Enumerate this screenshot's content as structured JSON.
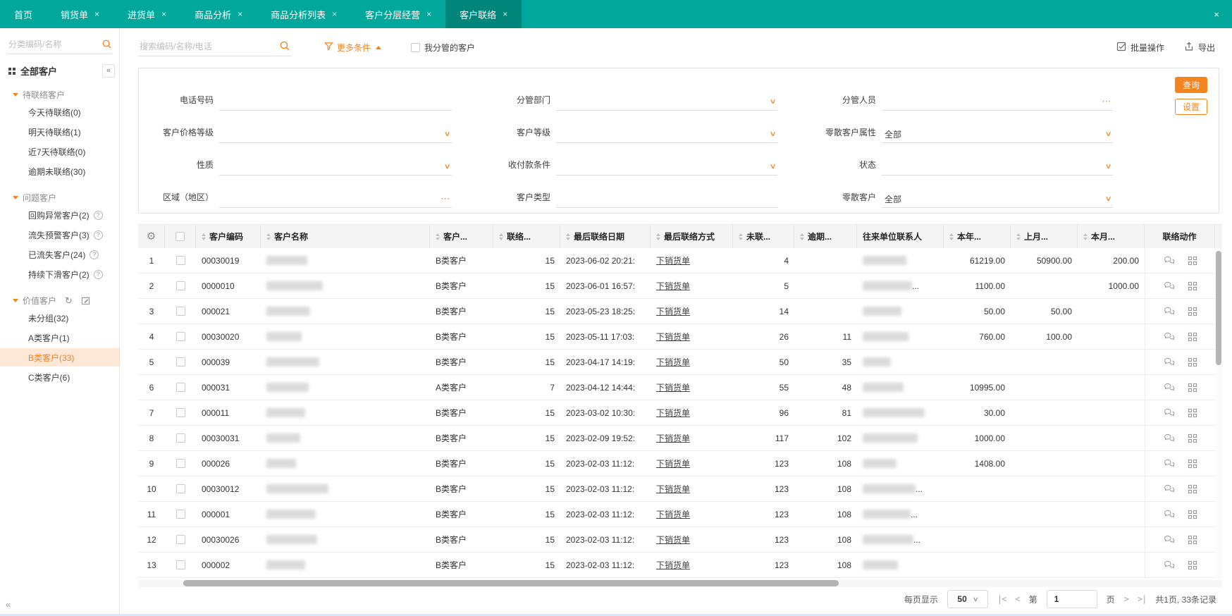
{
  "topbar": {
    "tabs": [
      {
        "label": "首页",
        "closable": false,
        "active": false
      },
      {
        "label": "销货单",
        "closable": true,
        "active": false
      },
      {
        "label": "进货单",
        "closable": true,
        "active": false
      },
      {
        "label": "商品分析",
        "closable": true,
        "active": false
      },
      {
        "label": "商品分析列表",
        "closable": true,
        "active": false
      },
      {
        "label": "客户分层经营",
        "closable": true,
        "active": false
      },
      {
        "label": "客户联络",
        "closable": true,
        "active": true
      }
    ],
    "close_all": "×"
  },
  "sidebar": {
    "search_placeholder": "分类编码/名称",
    "all_customers": "全部客户",
    "collapse_icon": "«",
    "groups": [
      {
        "label": "待联络客户",
        "items": [
          {
            "label": "今天待联络(0)"
          },
          {
            "label": "明天待联络(1)"
          },
          {
            "label": "近7天待联络(0)"
          },
          {
            "label": "逾期未联络(30)"
          }
        ]
      },
      {
        "label": "问题客户",
        "items": [
          {
            "label": "回购异常客户(2)",
            "help": true
          },
          {
            "label": "流失预警客户(3)",
            "help": true
          },
          {
            "label": "已流失客户(24)",
            "help": true
          },
          {
            "label": "持续下滑客户(2)",
            "help": true
          }
        ]
      },
      {
        "label": "价值客户",
        "has_refresh": true,
        "has_edit": true,
        "items": [
          {
            "label": "未分组(32)"
          },
          {
            "label": "A类客户(1)"
          },
          {
            "label": "B类客户(33)",
            "selected": true
          },
          {
            "label": "C类客户(6)"
          }
        ]
      }
    ]
  },
  "toolbar": {
    "search_placeholder": "搜索编码/名称/电话",
    "more_filters": "更多条件",
    "my_customers": "我分管的客户",
    "batch_ops": "批量操作",
    "export": "导出"
  },
  "filter_panel": {
    "fields": [
      {
        "label": "电话号码",
        "value": "",
        "type": "input"
      },
      {
        "label": "分管部门",
        "value": "",
        "type": "select"
      },
      {
        "label": "分管人员",
        "value": "",
        "type": "ellipsis"
      },
      {
        "label": "客户价格等级",
        "value": "",
        "type": "select"
      },
      {
        "label": "客户等级",
        "value": "",
        "type": "select"
      },
      {
        "label": "零散客户属性",
        "value": "全部",
        "type": "select"
      },
      {
        "label": "性质",
        "value": "",
        "type": "select"
      },
      {
        "label": "收付款条件",
        "value": "",
        "type": "select"
      },
      {
        "label": "状态",
        "value": "",
        "type": "select"
      },
      {
        "label": "区域（地区）",
        "value": "",
        "type": "ellipsis"
      },
      {
        "label": "客户类型",
        "value": "",
        "type": "input"
      },
      {
        "label": "零散客户",
        "value": "全部",
        "type": "select"
      }
    ],
    "query_button": "查询",
    "settings_button": "设置"
  },
  "table": {
    "columns": [
      {
        "label": "客户编码",
        "sortable": true
      },
      {
        "label": "客户名称",
        "sortable": true
      },
      {
        "label": "客户...",
        "sortable": true
      },
      {
        "label": "联络...",
        "sortable": true
      },
      {
        "label": "最后联络日期",
        "sortable": true
      },
      {
        "label": "最后联络方式",
        "sortable": true
      },
      {
        "label": "未联...",
        "sortable": true
      },
      {
        "label": "逾期...",
        "sortable": true
      },
      {
        "label": "往来单位联系人",
        "sortable": false
      },
      {
        "label": "本年...",
        "sortable": true
      },
      {
        "label": "上月...",
        "sortable": true
      },
      {
        "label": "本月...",
        "sortable": true
      },
      {
        "label": "联络动作",
        "sortable": false
      }
    ],
    "rows": [
      {
        "num": "1",
        "code": "00030019",
        "name_w": 58,
        "grade": "B类客户",
        "cnt": "15",
        "date": "2023-06-02 20:21:",
        "way": "下销货单",
        "unl": "4",
        "ovd": "",
        "contact_w": 62,
        "contact_suffix": "",
        "year": "61219.00",
        "lm": "50900.00",
        "tm": "200.00"
      },
      {
        "num": "2",
        "code": "0000010",
        "name_w": 80,
        "grade": "B类客户",
        "cnt": "15",
        "date": "2023-06-01 16:57:",
        "way": "下销货单",
        "unl": "5",
        "ovd": "",
        "contact_w": 70,
        "contact_suffix": "...",
        "year": "1100.00",
        "lm": "",
        "tm": "1000.00"
      },
      {
        "num": "3",
        "code": "000021",
        "name_w": 62,
        "grade": "B类客户",
        "cnt": "15",
        "date": "2023-05-23 18:25:",
        "way": "下销货单",
        "unl": "14",
        "ovd": "",
        "contact_w": 55,
        "contact_suffix": "",
        "year": "50.00",
        "lm": "50.00",
        "tm": ""
      },
      {
        "num": "4",
        "code": "00030020",
        "name_w": 50,
        "grade": "B类客户",
        "cnt": "15",
        "date": "2023-05-11 17:03:",
        "way": "下销货单",
        "unl": "26",
        "ovd": "11",
        "contact_w": 65,
        "contact_suffix": "",
        "year": "760.00",
        "lm": "100.00",
        "tm": ""
      },
      {
        "num": "5",
        "code": "000039",
        "name_w": 75,
        "grade": "B类客户",
        "cnt": "15",
        "date": "2023-04-17 14:19:",
        "way": "下销货单",
        "unl": "50",
        "ovd": "35",
        "contact_w": 40,
        "contact_suffix": "",
        "year": "",
        "lm": "",
        "tm": ""
      },
      {
        "num": "6",
        "code": "000031",
        "name_w": 60,
        "grade": "A类客户",
        "cnt": "7",
        "date": "2023-04-12 14:44:",
        "way": "下销货单",
        "unl": "55",
        "ovd": "48",
        "contact_w": 58,
        "contact_suffix": "",
        "year": "10995.00",
        "lm": "",
        "tm": ""
      },
      {
        "num": "7",
        "code": "000011",
        "name_w": 55,
        "grade": "B类客户",
        "cnt": "15",
        "date": "2023-03-02 10:30:",
        "way": "下销货单",
        "unl": "96",
        "ovd": "81",
        "contact_w": 88,
        "contact_suffix": "",
        "year": "30.00",
        "lm": "",
        "tm": ""
      },
      {
        "num": "8",
        "code": "00030031",
        "name_w": 48,
        "grade": "B类客户",
        "cnt": "15",
        "date": "2023-02-09 19:52:",
        "way": "下销货单",
        "unl": "117",
        "ovd": "102",
        "contact_w": 78,
        "contact_suffix": "",
        "year": "1000.00",
        "lm": "",
        "tm": ""
      },
      {
        "num": "9",
        "code": "000026",
        "name_w": 42,
        "grade": "B类客户",
        "cnt": "15",
        "date": "2023-02-03 11:12:",
        "way": "下销货单",
        "unl": "123",
        "ovd": "108",
        "contact_w": 48,
        "contact_suffix": "",
        "year": "1408.00",
        "lm": "",
        "tm": ""
      },
      {
        "num": "10",
        "code": "00030012",
        "name_w": 88,
        "grade": "B类客户",
        "cnt": "15",
        "date": "2023-02-03 11:12:",
        "way": "下销货单",
        "unl": "123",
        "ovd": "108",
        "contact_w": 75,
        "contact_suffix": "...",
        "year": "",
        "lm": "",
        "tm": ""
      },
      {
        "num": "11",
        "code": "000001",
        "name_w": 70,
        "grade": "B类客户",
        "cnt": "15",
        "date": "2023-02-03 11:12:",
        "way": "下销货单",
        "unl": "123",
        "ovd": "108",
        "contact_w": 68,
        "contact_suffix": "...",
        "year": "",
        "lm": "",
        "tm": ""
      },
      {
        "num": "12",
        "code": "00030026",
        "name_w": 72,
        "grade": "B类客户",
        "cnt": "15",
        "date": "2023-02-03 11:12:",
        "way": "下销货单",
        "unl": "123",
        "ovd": "108",
        "contact_w": 72,
        "contact_suffix": "...",
        "year": "",
        "lm": "",
        "tm": ""
      },
      {
        "num": "13",
        "code": "000002",
        "name_w": 55,
        "grade": "B类客户",
        "cnt": "15",
        "date": "2023-02-03 11:12:",
        "way": "下销货单",
        "unl": "123",
        "ovd": "108",
        "contact_w": 50,
        "contact_suffix": "",
        "year": "",
        "lm": "",
        "tm": ""
      }
    ]
  },
  "pagination": {
    "per_page_label": "每页显示",
    "per_page": "50",
    "first": "|<",
    "prev": "<",
    "page_prefix": "第",
    "page": "1",
    "page_suffix": "页",
    "next": ">",
    "last": ">|",
    "total": "共1页, 33条记录"
  },
  "colors": {
    "topbar": "#00a79a",
    "topbar_active": "#00857b",
    "accent_orange": "#f5831f",
    "selected_item_bg": "#fde7d6"
  }
}
